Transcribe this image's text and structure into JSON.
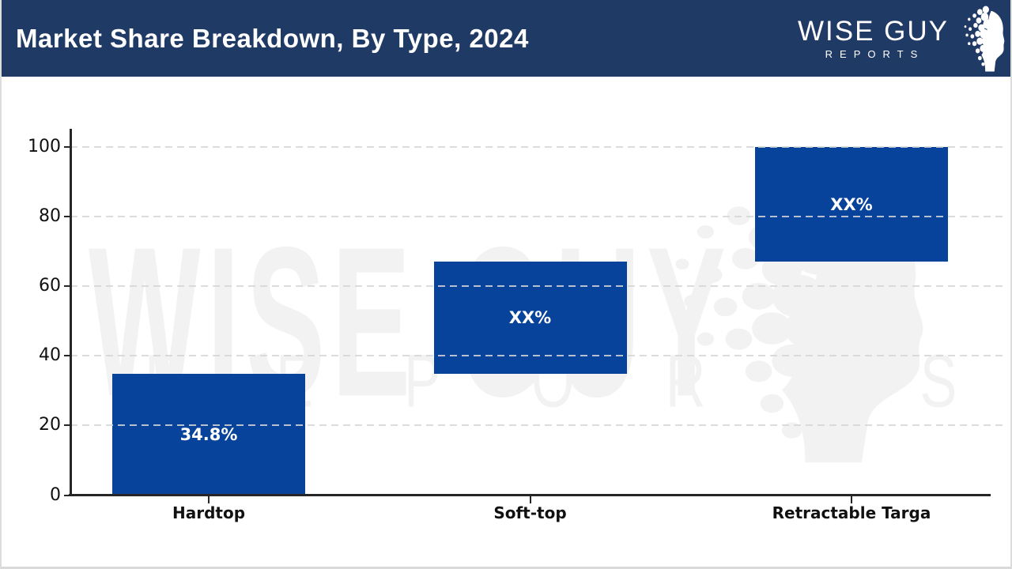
{
  "header": {
    "title": "Market Share Breakdown, By Type, 2024",
    "bg_color": "#203a66",
    "logo": {
      "line1": "WISE GUY",
      "line2": "REPORTS"
    }
  },
  "watermark": {
    "line1": "WISE GUY",
    "line2": "R E P O R T S"
  },
  "chart_data": {
    "type": "bar",
    "subtype": "waterfall",
    "title": "Market Share Breakdown, By Type, 2024",
    "categories": [
      "Hardtop",
      "Soft-top",
      "Retractable Targa"
    ],
    "segments": [
      {
        "category": "Hardtop",
        "start": 0,
        "end": 34.8,
        "label": "34.8%"
      },
      {
        "category": "Soft-top",
        "start": 34.8,
        "end": 67,
        "label": "XX%"
      },
      {
        "category": "Retractable Targa",
        "start": 67,
        "end": 100,
        "label": "XX%"
      }
    ],
    "xlabel": "",
    "ylabel": "",
    "ylim": [
      0,
      100
    ],
    "yticks": [
      0,
      20,
      40,
      60,
      80,
      100
    ],
    "grid": "dashed-horizontal",
    "legend": "none",
    "bar_color": "#08439b",
    "bar_label_color": "#ffffff",
    "axis_color": "#262626",
    "gridline_color": "#d6d6d6"
  }
}
